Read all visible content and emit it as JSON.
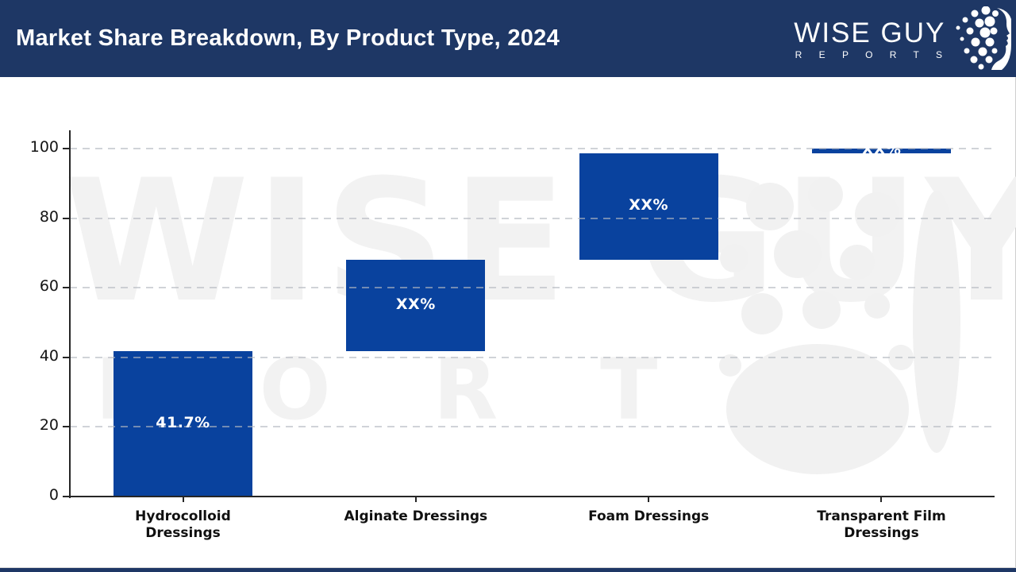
{
  "header": {
    "title": "Market Share Breakdown, By Product Type, 2024",
    "logo": {
      "line1": "WISE GUY",
      "line2": "R E P O R T S"
    }
  },
  "watermark": {
    "line1": "WISE GUY",
    "line2": "P O R T S"
  },
  "chart_data": {
    "type": "bar",
    "subtype": "waterfall",
    "title": "Market Share Breakdown, By Product Type, 2024",
    "categories": [
      "Hydrocolloid Dressings",
      "Alginate Dressings",
      "Foam Dressings",
      "Transparent Film Dressings"
    ],
    "category_lines": [
      [
        "Hydrocolloid",
        "Dressings"
      ],
      [
        "Alginate Dressings"
      ],
      [
        "Foam Dressings"
      ],
      [
        "Transparent Film",
        "Dressings"
      ]
    ],
    "bars": [
      {
        "category": "Hydrocolloid Dressings",
        "start": 0,
        "end": 41.7,
        "label": "41.7%"
      },
      {
        "category": "Alginate Dressings",
        "start": 41.7,
        "end": 68.0,
        "label": "XX%"
      },
      {
        "category": "Foam Dressings",
        "start": 68.0,
        "end": 98.6,
        "label": "XX%"
      },
      {
        "category": "Transparent Film Dressings",
        "start": 98.6,
        "end": 100.0,
        "label": "XX%"
      }
    ],
    "yticks": [
      0,
      20,
      40,
      60,
      80,
      100
    ],
    "ylim": [
      0,
      105
    ],
    "xlabel": "",
    "ylabel": "",
    "grid": "dashed-horizontal",
    "legend": "none",
    "bar_color": "#09429e",
    "bar_label_color": "#ffffff"
  },
  "colors": {
    "header_bg": "#1e3765",
    "bar_blue": "#09429e",
    "gridline": "#d9d9d9",
    "axis": "#262626",
    "watermark": "#f2f2f2"
  }
}
